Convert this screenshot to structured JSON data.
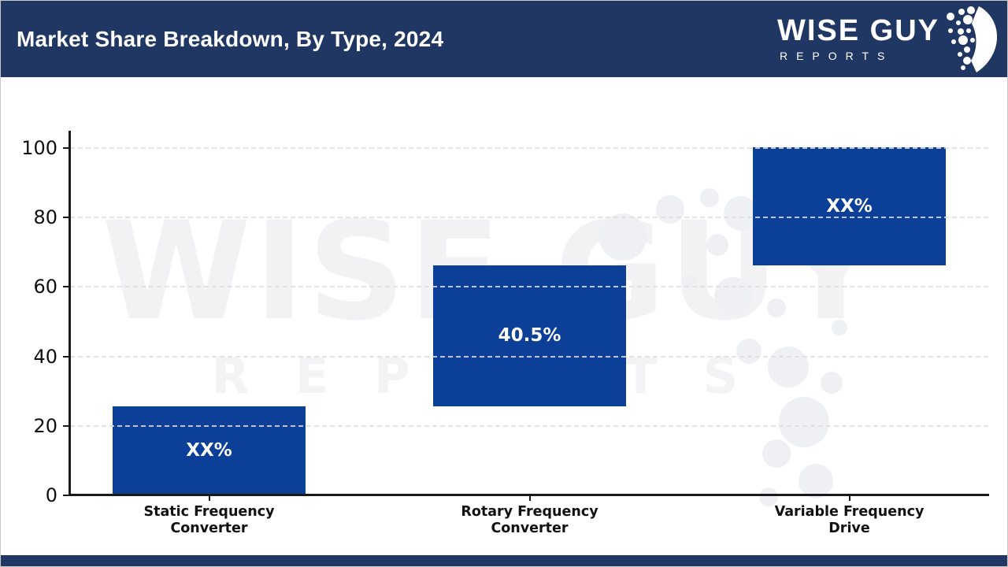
{
  "header": {
    "title": "Market Share Breakdown, By Type, 2024",
    "bg_color": "#203764",
    "logo": {
      "name": "Wise Guy Reports",
      "line1": "WISE GUY",
      "line2": "REPORTS"
    }
  },
  "watermark": {
    "line1": "WISE GUY",
    "line2": "REPORTS"
  },
  "footer": {
    "bg_color": "#203764"
  },
  "chart_data": {
    "type": "bar",
    "subtype": "floating-waterfall",
    "title": "Market Share Breakdown, By Type, 2024",
    "categories": [
      "Static Frequency Converter",
      "Rotary Frequency Converter",
      "Variable Frequency Drive"
    ],
    "bars": [
      {
        "category": "Static Frequency Converter",
        "axis_label": "Static Frequency\nConverter",
        "base": 0,
        "top": 25.5,
        "value_label": "XX%"
      },
      {
        "category": "Rotary Frequency Converter",
        "axis_label": "Rotary Frequency\nConverter",
        "base": 25.5,
        "top": 66,
        "value_label": "40.5%"
      },
      {
        "category": "Variable Frequency Drive",
        "axis_label": "Variable Frequency\nDrive",
        "base": 66,
        "top": 100,
        "value_label": "XX%"
      }
    ],
    "ylim": [
      0,
      100
    ],
    "yticks": [
      0,
      20,
      40,
      60,
      80,
      100
    ],
    "grid": "horizontal-dashed",
    "legend": "none",
    "bar_color": "#0B3F98",
    "value_label_color": "#FFFFFF"
  }
}
